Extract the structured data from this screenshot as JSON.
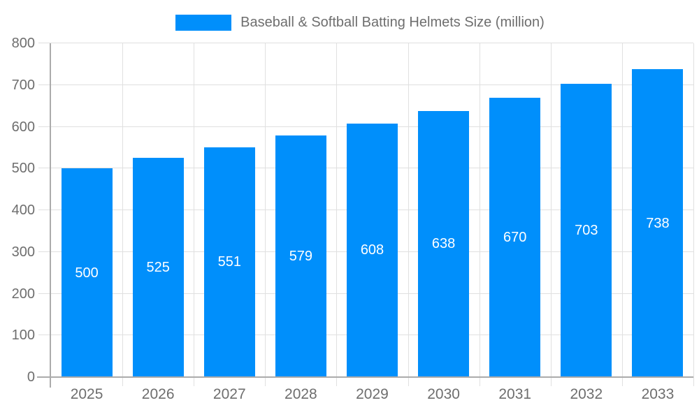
{
  "chart_data": {
    "type": "bar",
    "title": "Baseball & Softball Batting Helmets Size (million)",
    "series_name": "Baseball & Softball Batting Helmets Size (million)",
    "categories": [
      "2025",
      "2026",
      "2027",
      "2028",
      "2029",
      "2030",
      "2031",
      "2032",
      "2033"
    ],
    "values": [
      500,
      525,
      551,
      579,
      608,
      638,
      670,
      703,
      738
    ],
    "xlabel": "",
    "ylabel": "",
    "ylim": [
      0,
      800
    ],
    "ytick_step": 100,
    "ytick_labels": [
      "0",
      "100",
      "200",
      "300",
      "400",
      "500",
      "600",
      "700",
      "800"
    ],
    "grid": "both",
    "legend_position": "top-center",
    "value_label_position": "inside-center",
    "colors": {
      "bar": "#008FFB",
      "value_label": "#ffffff",
      "axis_text": "#6e6e6e",
      "grid_line": "#e0e0e0",
      "axis_line": "#ababab",
      "background": "#ffffff"
    }
  }
}
